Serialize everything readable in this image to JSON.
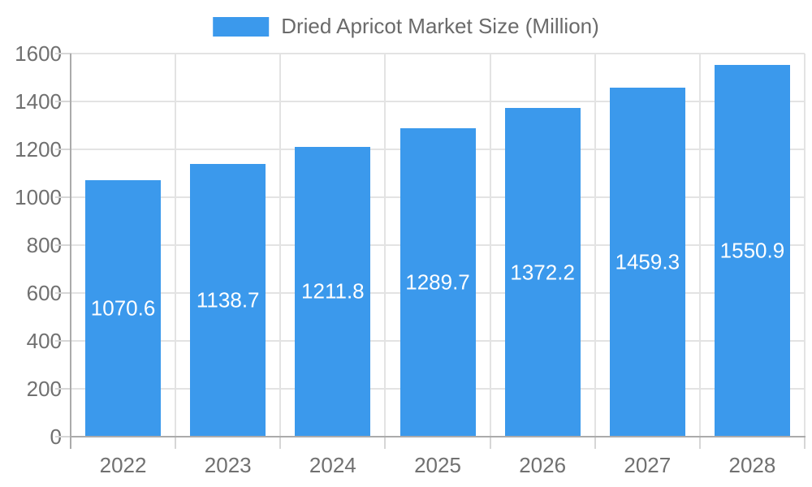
{
  "chart_data": {
    "type": "bar",
    "title": "Dried Apricot Market Size (Million)",
    "categories": [
      "2022",
      "2023",
      "2024",
      "2025",
      "2026",
      "2027",
      "2028"
    ],
    "values": [
      1070.6,
      1138.7,
      1211.8,
      1289.7,
      1372.2,
      1459.3,
      1550.9
    ],
    "value_labels": [
      "1070.6",
      "1138.7",
      "1211.8",
      "1289.7",
      "1372.2",
      "1459.3",
      "1550.9"
    ],
    "xlabel": "",
    "ylabel": "",
    "ylim": [
      0,
      1600
    ],
    "yticks": [
      0,
      200,
      400,
      600,
      800,
      1000,
      1200,
      1400,
      1600
    ],
    "grid": true,
    "legend_position": "top-center",
    "colors": {
      "bar": "#3b99ec",
      "value_text": "#ffffff",
      "axis_text": "#707070",
      "legend_text": "#6a6a6a",
      "gridline": "#e3e3e3",
      "tick": "#d6d6d6",
      "axis_line": "#ababab"
    }
  }
}
